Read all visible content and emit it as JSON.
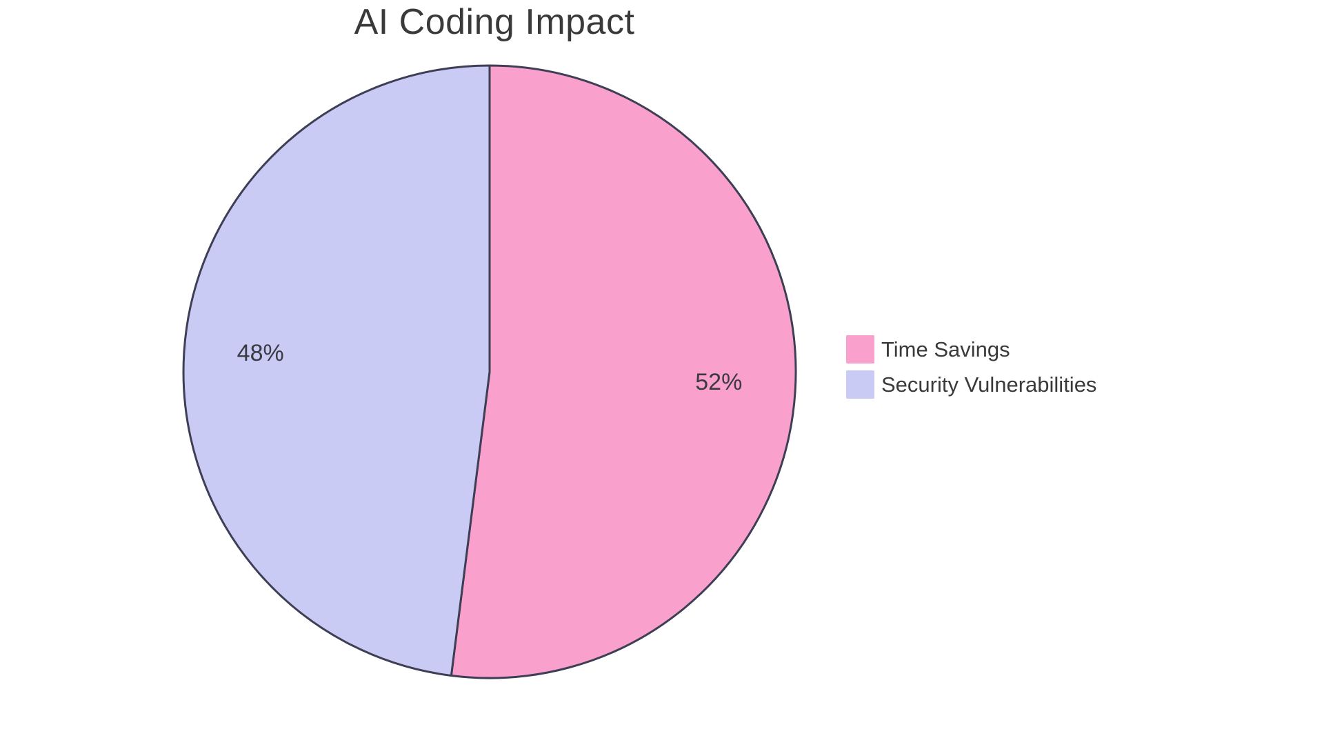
{
  "title": "AI Coding Impact",
  "chart_data": {
    "type": "pie",
    "title": "AI Coding Impact",
    "labels": [
      "Time Savings",
      "Security Vulnerabilities"
    ],
    "values": [
      52,
      48
    ],
    "percent_labels": [
      "52%",
      "48%"
    ],
    "slice_colors": [
      "#faa0cc",
      "#c9cbf5"
    ],
    "stroke_color": "#3e3e55",
    "label_text_color": "#3a3a41",
    "title_text_color": "#3a3a3a",
    "start_angle_deg": 0,
    "direction": "clockwise",
    "legend_position": "right",
    "label_radius_fraction": 0.75
  },
  "legend": {
    "items": [
      {
        "label": "Time Savings",
        "color": "#faa0cc"
      },
      {
        "label": "Security Vulnerabilities",
        "color": "#c9cbf5"
      }
    ]
  }
}
